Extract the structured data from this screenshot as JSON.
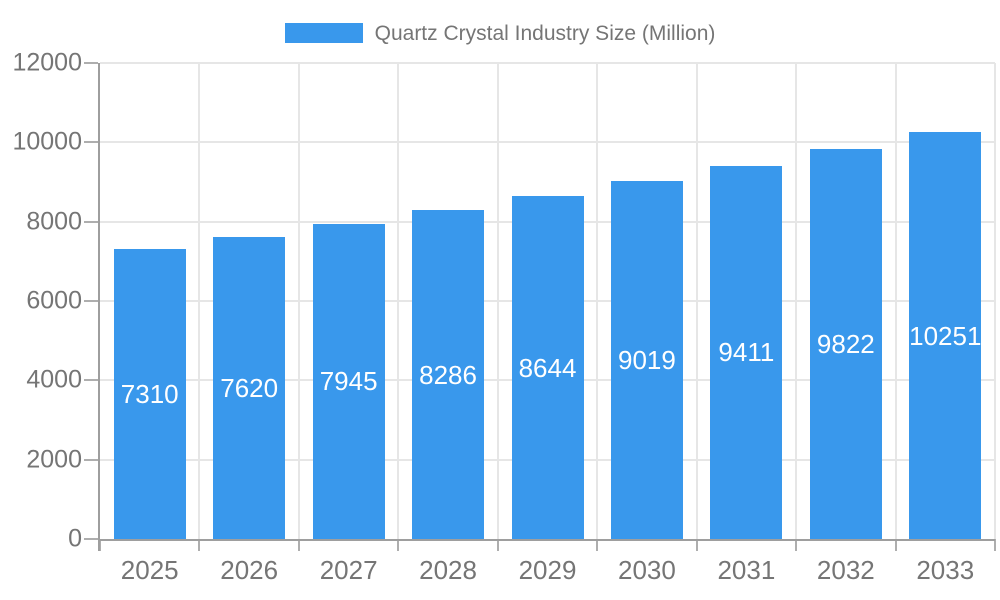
{
  "chart_data": {
    "type": "bar",
    "title": "",
    "legend": "Quartz Crystal Industry Size (Million)",
    "categories": [
      "2025",
      "2026",
      "2027",
      "2028",
      "2029",
      "2030",
      "2031",
      "2032",
      "2033"
    ],
    "values": [
      7310,
      7620,
      7945,
      8286,
      8644,
      9019,
      9411,
      9822,
      10251
    ],
    "yticks": [
      0,
      2000,
      4000,
      6000,
      8000,
      10000,
      12000
    ],
    "ylim": [
      0,
      12000
    ],
    "xlabel": "",
    "ylabel": "",
    "grid": true,
    "legend_position": "top-center",
    "bar_labels_inside": true,
    "colors": {
      "bar": "#3998EC",
      "bar_label": "#ffffff",
      "axis_label": "#757575",
      "legend_label": "#757575",
      "gridline": "#e6e6e6",
      "axis_line": "#9e9e9e",
      "tick": "#aeaeae",
      "background": "#ffffff"
    }
  }
}
